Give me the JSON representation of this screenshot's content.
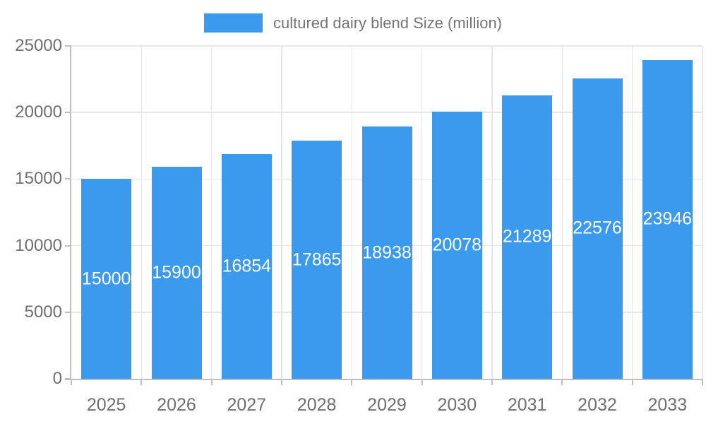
{
  "legend": {
    "label": "cultured dairy blend Size (million)"
  },
  "chart_data": {
    "type": "bar",
    "title": "",
    "categories": [
      "2025",
      "2026",
      "2027",
      "2028",
      "2029",
      "2030",
      "2031",
      "2032",
      "2033"
    ],
    "series": [
      {
        "name": "cultured dairy blend Size (million)",
        "values": [
          15000,
          15900,
          16854,
          17865,
          18938,
          20078,
          21289,
          22576,
          23946
        ]
      }
    ],
    "value_labels_shown": true,
    "value_label_position": "inside-center",
    "xlabel": "",
    "ylabel": "",
    "ylim": [
      0,
      25000
    ],
    "yticks": [
      0,
      5000,
      10000,
      15000,
      20000,
      25000
    ],
    "grid": true,
    "legend_position": "top"
  },
  "colors": {
    "bar": "#3B9AEC",
    "grid": "#E7E7E7",
    "axis": "#BFBFBF",
    "tick_text": "#6F6F6F",
    "legend_text": "#757575",
    "value_label_text": "#FFFFFF",
    "background": "#FFFFFF"
  }
}
